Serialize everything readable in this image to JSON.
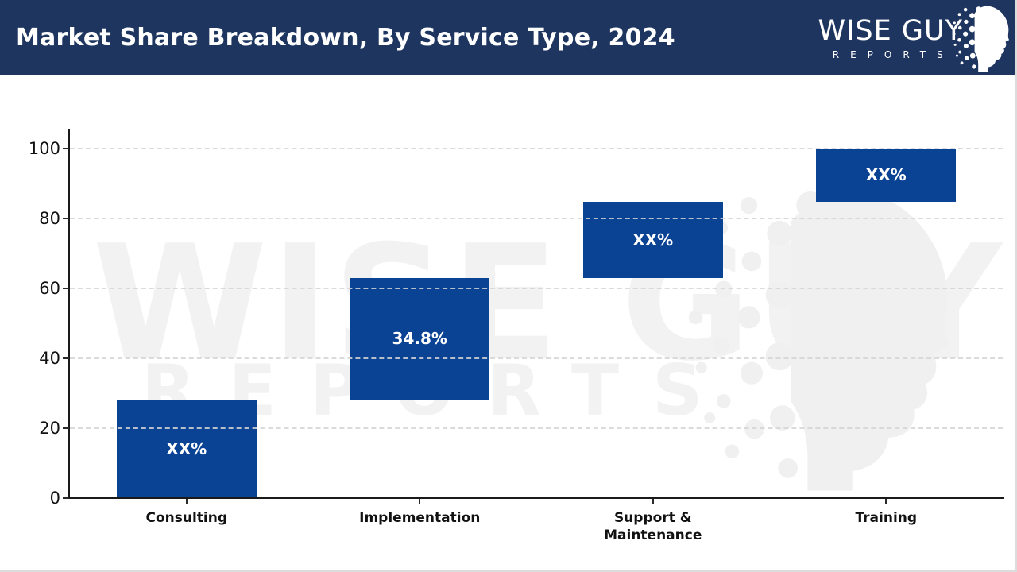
{
  "header": {
    "title": "Market Share Breakdown, By Service Type, 2024",
    "bg_color": "#1e3560",
    "logo": {
      "name": "WISE GUY",
      "tagline": "REPORTS"
    }
  },
  "watermark": {
    "big_text": "WISE GUY",
    "small_text": "REPORTS"
  },
  "chart_data": {
    "type": "bar",
    "subtype": "floating-waterfall",
    "title": "Market Share Breakdown, By Service Type, 2024",
    "categories": [
      "Consulting",
      "Implementation",
      "Support &\nMaintenance",
      "Training"
    ],
    "segments": [
      {
        "category": "Consulting",
        "start": 0,
        "end": 28.2,
        "label": "XX%"
      },
      {
        "category": "Implementation",
        "start": 28.2,
        "end": 63,
        "label": "34.8%"
      },
      {
        "category": "Support & Maintenance",
        "start": 63,
        "end": 84.8,
        "label": "XX%"
      },
      {
        "category": "Training",
        "start": 84.8,
        "end": 100,
        "label": "XX%"
      }
    ],
    "yticks": [
      0,
      20,
      40,
      60,
      80,
      100
    ],
    "ylim": [
      0,
      105
    ],
    "xlabel": "",
    "ylabel": "",
    "legend": null,
    "grid": "horizontal-dashed",
    "grid_color": "#d5d5d5",
    "bar_color": "#0a4294",
    "bar_label_color": "#ffffff",
    "axis_color": "#1a1a1a"
  }
}
